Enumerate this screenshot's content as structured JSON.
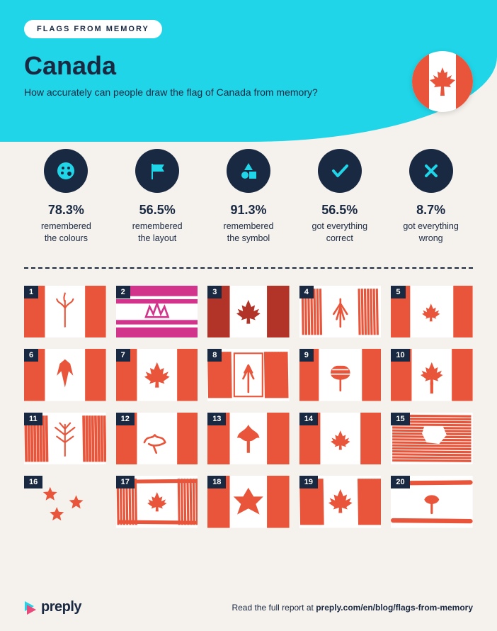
{
  "pill": "FLAGS FROM MEMORY",
  "title": "Canada",
  "subtitle": "How accurately can people draw the flag of Canada from memory?",
  "colors": {
    "accent": "#20d5e8",
    "dark": "#1a2942",
    "flag_red": "#e8553a",
    "bg": "#f5f2ed"
  },
  "stats": [
    {
      "icon": "palette",
      "pct": "78.3%",
      "label": "remembered\nthe colours"
    },
    {
      "icon": "flag",
      "pct": "56.5%",
      "label": "remembered\nthe layout"
    },
    {
      "icon": "shapes",
      "pct": "91.3%",
      "label": "remembered\nthe symbol"
    },
    {
      "icon": "check",
      "pct": "56.5%",
      "label": "got everything\ncorrect"
    },
    {
      "icon": "cross",
      "pct": "8.7%",
      "label": "got everything\nwrong"
    }
  ],
  "tiles": [
    1,
    2,
    3,
    4,
    5,
    6,
    7,
    8,
    9,
    10,
    11,
    12,
    13,
    14,
    15,
    16,
    17,
    18,
    19,
    20
  ],
  "footer": {
    "brand": "preply",
    "prefix": "Read the full report at ",
    "link": "preply.com/en/blog/flags-from-memory"
  }
}
